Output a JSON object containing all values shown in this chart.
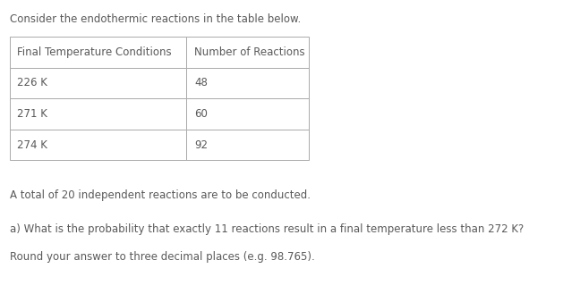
{
  "title_text": "Consider the endothermic reactions in the table below.",
  "col_headers": [
    "Final Temperature Conditions",
    "Number of Reactions"
  ],
  "rows": [
    [
      "226 K",
      "48"
    ],
    [
      "271 K",
      "60"
    ],
    [
      "274 K",
      "92"
    ]
  ],
  "footer_line1": "A total of 20 independent reactions are to be conducted.",
  "footer_line2": "a) What is the probability that exactly 11 reactions result in a final temperature less than 272 K?",
  "footer_line3": "Round your answer to three decimal places (e.g. 98.765).",
  "background_color": "#ffffff",
  "text_color": "#595959",
  "table_border_color": "#aaaaaa",
  "font_size": 8.5
}
